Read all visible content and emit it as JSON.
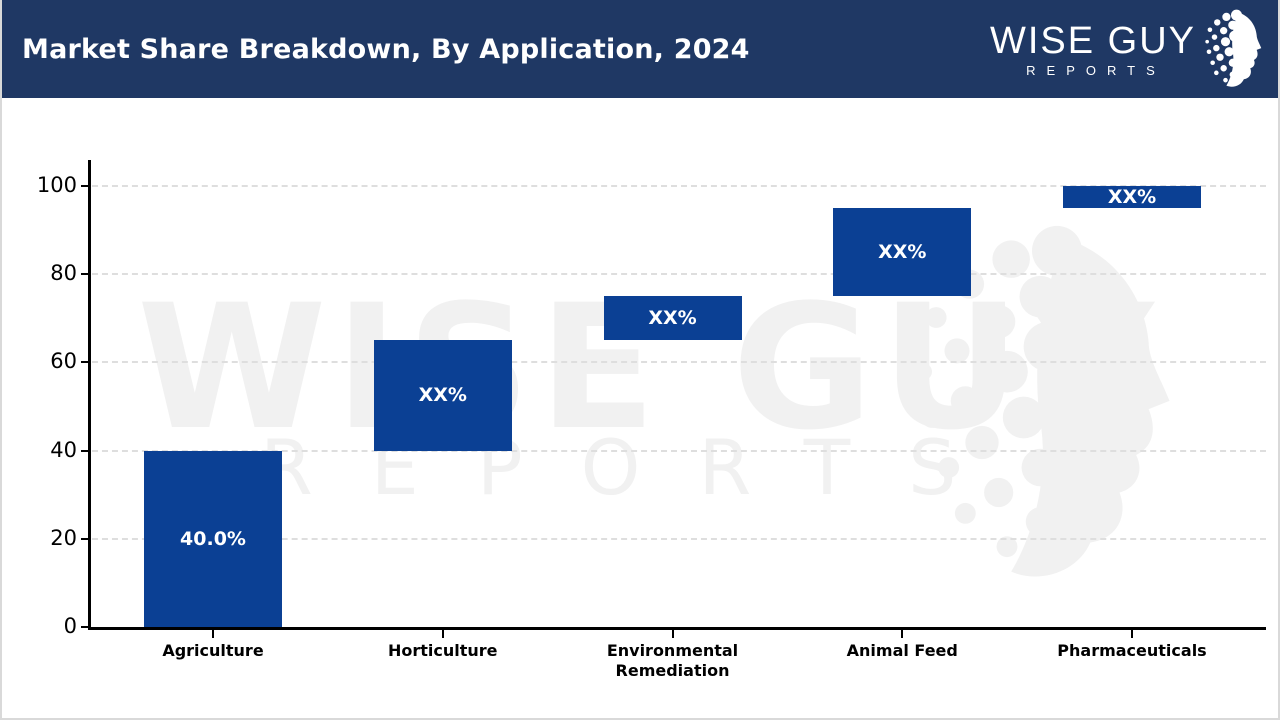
{
  "header": {
    "title": "Market Share Breakdown, By Application, 2024",
    "logo": {
      "name": "WISE GUY",
      "sub": "REPORTS"
    }
  },
  "watermark": {
    "name": "WISE GUY",
    "sub": "REPORTS"
  },
  "colors": {
    "header_bg": "#1f3864",
    "bar": "#0b4094",
    "bar_label": "#ffffff",
    "grid": "#dedede",
    "axis": "#000000",
    "watermark": "#f1f1f1"
  },
  "chart_data": {
    "type": "bar",
    "subtype": "waterfall",
    "title": "Market Share Breakdown, By Application, 2024",
    "categories": [
      "Agriculture",
      "Horticulture",
      "Environmental\nRemediation",
      "Animal Feed",
      "Pharmaceuticals"
    ],
    "segments": [
      {
        "category": "Agriculture",
        "start": 0,
        "end": 40,
        "label": "40.0%"
      },
      {
        "category": "Horticulture",
        "start": 40,
        "end": 65,
        "label": "XX%"
      },
      {
        "category": "Environmental Remediation",
        "start": 65,
        "end": 75,
        "label": "XX%"
      },
      {
        "category": "Animal Feed",
        "start": 75,
        "end": 95,
        "label": "XX%"
      },
      {
        "category": "Pharmaceuticals",
        "start": 95,
        "end": 100,
        "label": "XX%"
      }
    ],
    "yticks": [
      0,
      20,
      40,
      60,
      80,
      100
    ],
    "ylim": [
      0,
      106
    ],
    "xlabel": "",
    "ylabel": "",
    "grid": "horizontal-dashed",
    "legend": "none"
  }
}
